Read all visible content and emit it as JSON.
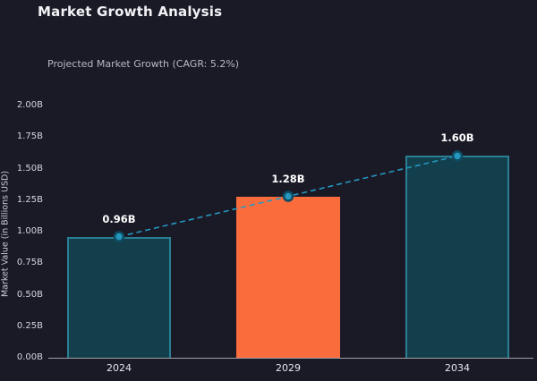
{
  "header": {
    "title": "Market Growth Analysis",
    "subtitle": "Projected Market Growth (CAGR: 5.2%)"
  },
  "chart_data": {
    "type": "bar",
    "title": "Market Growth Analysis",
    "subtitle": "Projected Market Growth (CAGR: 5.2%)",
    "categories": [
      "2024",
      "2029",
      "2034"
    ],
    "values": [
      0.96,
      1.28,
      1.6
    ],
    "value_labels": [
      "0.96B",
      "1.28B",
      "1.60B"
    ],
    "xlabel": "",
    "ylabel": "Market Value (in Billions USD)",
    "ylim": [
      0,
      2.0
    ],
    "yticks": [
      "0.00B",
      "0.25B",
      "0.50B",
      "0.75B",
      "1.00B",
      "1.25B",
      "1.50B",
      "1.75B",
      "2.00B"
    ],
    "legend": "none",
    "grid": "off",
    "colors": {
      "background": "#1a1a27",
      "bar_fills": [
        "#123f4b",
        "#fb6c3c",
        "#123f4b"
      ],
      "bar_borders": [
        "#2a7f94",
        "#fb6c3c",
        "#2a7f94"
      ],
      "trend_line": "#2596be",
      "marker_fill": "#2596be",
      "marker_stroke": "#0d4c61",
      "axis_line": "#a0a0aa",
      "title_text": "#f2f2f6",
      "subtitle_text": "#b9b9c5",
      "tick_text": "#d5d5dd"
    },
    "overlay_line": {
      "style": "dashed",
      "connects": "bar tops / data points"
    }
  }
}
